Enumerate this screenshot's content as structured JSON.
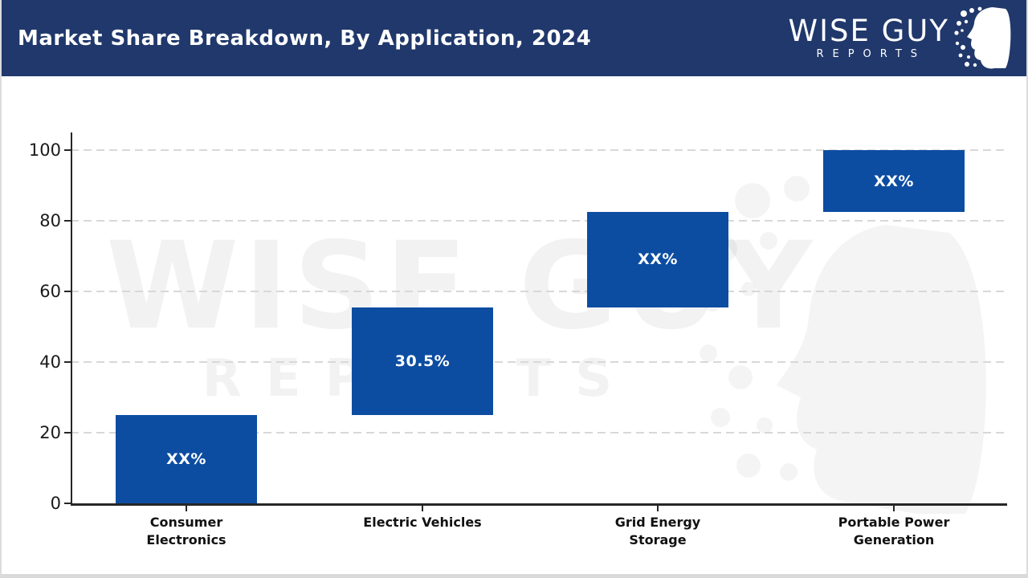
{
  "header": {
    "title": "Market Share Breakdown, By Application, 2024",
    "logo": {
      "line1": "WISE GUY",
      "line2": "REPORTS"
    }
  },
  "watermark": {
    "line1": "WISE GUY",
    "line2": "REPORTS"
  },
  "chart_data": {
    "type": "bar",
    "subtype": "waterfall",
    "title": "Market Share Breakdown, By Application, 2024",
    "xlabel": "",
    "ylabel": "",
    "ylim": [
      0,
      100
    ],
    "yticks": [
      0,
      20,
      40,
      60,
      80,
      100
    ],
    "grid": "horizontal-dashed",
    "legend": "none",
    "bar_color": "#0c4da2",
    "categories": [
      "Consumer\nElectronics",
      "Electric Vehicles",
      "Grid Energy\nStorage",
      "Portable Power\nGeneration"
    ],
    "segments": [
      {
        "category": "Consumer Electronics",
        "start": 0,
        "end": 25,
        "label": "XX%"
      },
      {
        "category": "Electric Vehicles",
        "start": 25,
        "end": 55.5,
        "label": "30.5%"
      },
      {
        "category": "Grid Energy Storage",
        "start": 55.5,
        "end": 82.5,
        "label": "XX%"
      },
      {
        "category": "Portable Power Generation",
        "start": 82.5,
        "end": 100,
        "label": "XX%"
      }
    ]
  }
}
